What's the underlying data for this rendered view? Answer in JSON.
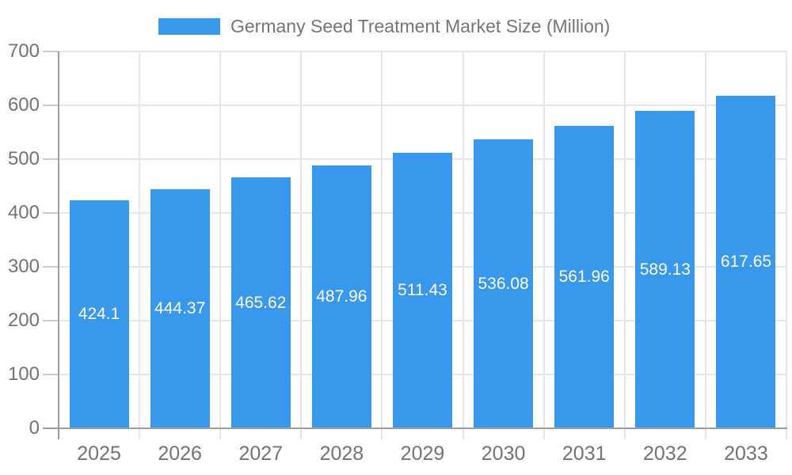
{
  "chart_data": {
    "type": "bar",
    "title": "Germany Seed Treatment Market Size (Million)",
    "series_name": "Germany Seed Treatment Market Size (Million)",
    "categories": [
      "2025",
      "2026",
      "2027",
      "2028",
      "2029",
      "2030",
      "2031",
      "2032",
      "2033"
    ],
    "values": [
      424.1,
      444.37,
      465.62,
      487.96,
      511.43,
      536.08,
      561.96,
      589.13,
      617.65
    ],
    "value_labels": [
      "424.1",
      "444.37",
      "465.62",
      "487.96",
      "511.43",
      "536.08",
      "561.96",
      "589.13",
      "617.65"
    ],
    "xlabel": "",
    "ylabel": "",
    "ylim": [
      0,
      700
    ],
    "yticks": [
      0,
      100,
      200,
      300,
      400,
      500,
      600,
      700
    ],
    "grid": true,
    "legend_position": "top-center"
  },
  "colors": {
    "bar": "#3898ec",
    "grid": "#e6e6e6",
    "axis": "#9e9e9e",
    "tick": "#c9c9c9",
    "axis_text": "#737373",
    "legend_text": "#757575",
    "value_text": "#ffffff",
    "background": "#ffffff"
  }
}
